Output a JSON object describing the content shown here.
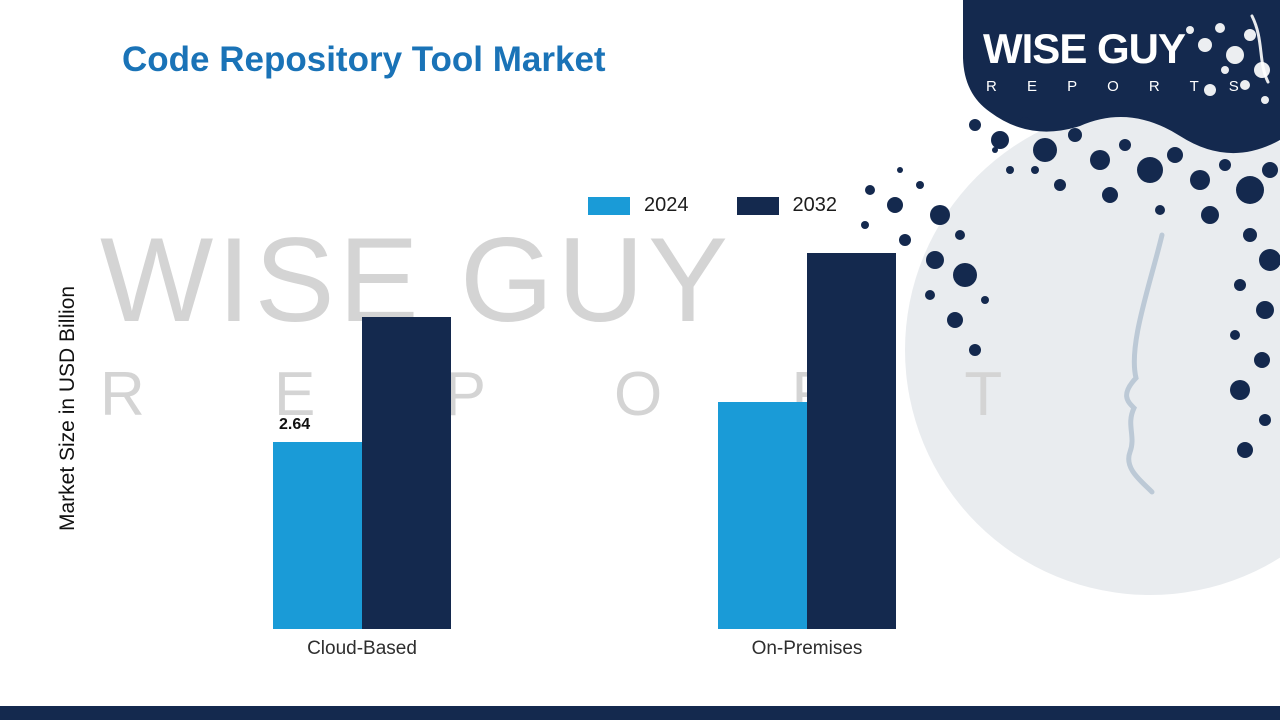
{
  "title": "Code Repository Tool Market",
  "ylabel": "Market Size in USD Billion",
  "watermark": {
    "line1": "WISE GUY",
    "line2": "R E P O R T"
  },
  "logo": {
    "line1": "WISE GUY",
    "line2": "R E P O R T S"
  },
  "colors": {
    "title": "#1a73b7",
    "series_2024": "#1a9bd7",
    "series_2032": "#14294e",
    "footer": "#14294e",
    "watermark": "#d4d4d4"
  },
  "chart_data": {
    "type": "bar",
    "title": "Code Repository Tool Market",
    "xlabel": "",
    "ylabel": "Market Size in USD Billion",
    "categories": [
      "Cloud-Based",
      "On-Premises"
    ],
    "series": [
      {
        "name": "2024",
        "color": "#1a9bd7",
        "values": [
          2.64,
          3.2
        ]
      },
      {
        "name": "2032",
        "color": "#14294e",
        "values": [
          4.4,
          5.3
        ]
      }
    ],
    "ylim": [
      0,
      5.5
    ],
    "grid": false,
    "legend_position": "top",
    "annotations": [
      {
        "text": "2.64",
        "category_index": 0,
        "series_index": 0
      }
    ]
  }
}
